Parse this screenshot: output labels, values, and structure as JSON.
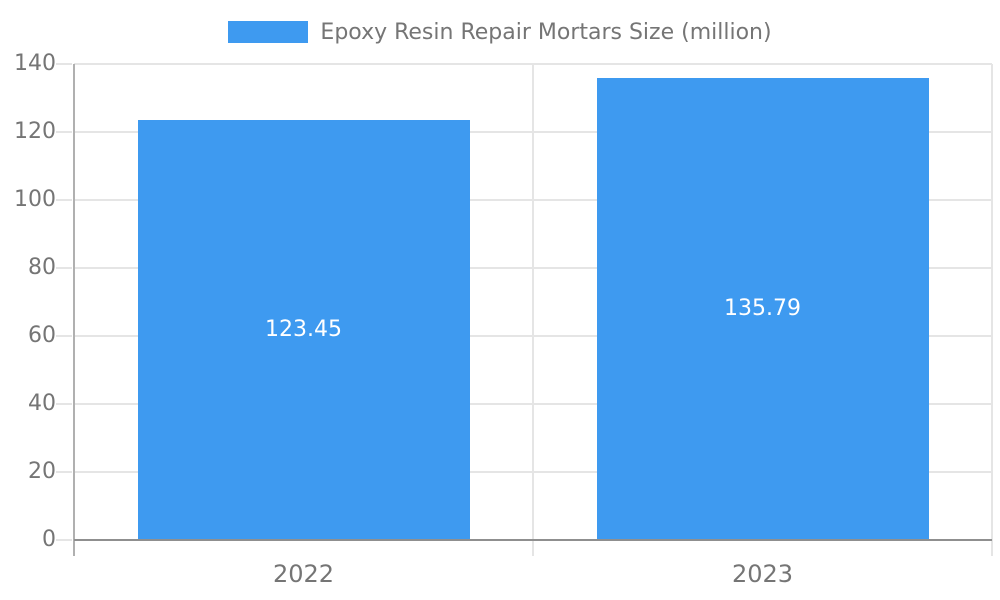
{
  "legend": {
    "label": "Epoxy Resin Repair Mortars Size (million)"
  },
  "chart_data": {
    "type": "bar",
    "title": "Epoxy Resin Repair Mortars Size (million)",
    "categories": [
      "2022",
      "2023"
    ],
    "series": [
      {
        "name": "Epoxy Resin Repair Mortars Size (million)",
        "values": [
          123.45,
          135.79
        ]
      }
    ],
    "value_labels": [
      "123.45",
      "135.79"
    ],
    "xlabel": "",
    "ylabel": "",
    "ylim": [
      0,
      140
    ],
    "yticks": [
      0,
      20,
      40,
      60,
      80,
      100,
      120,
      140
    ],
    "ytick_labels": [
      "0",
      "20",
      "40",
      "60",
      "80",
      "100",
      "120",
      "140"
    ],
    "grid": true,
    "legend_position": "top",
    "colors": {
      "bar": "#3E9AF0",
      "grid": "#e5e5e5",
      "axis": "#8f8f8f",
      "yaxis": "#b0b0b0",
      "tick_label": "#757575",
      "bar_label": "#ffffff",
      "legend_label": "#757575"
    }
  }
}
